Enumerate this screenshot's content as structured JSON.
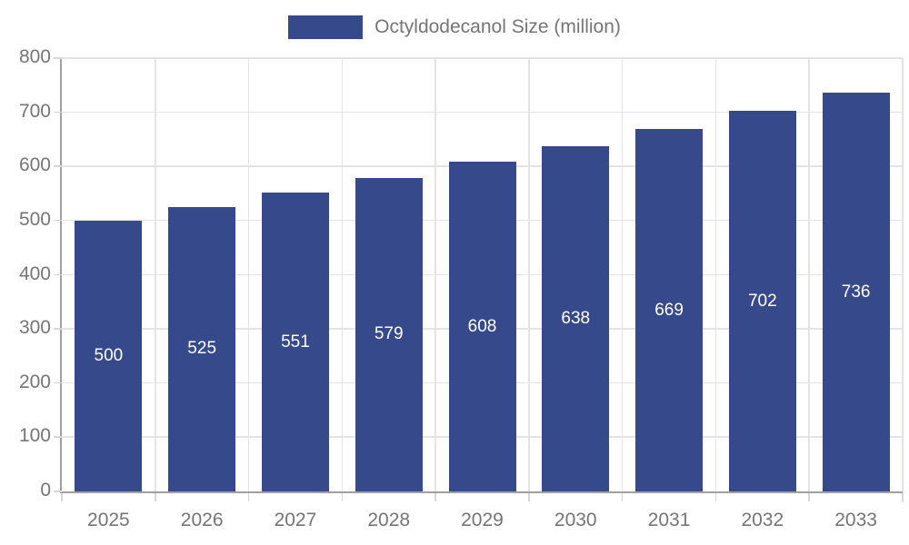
{
  "legend": {
    "label": "Octyldodecanol Size (million)"
  },
  "chart_data": {
    "type": "bar",
    "title": "",
    "xlabel": "",
    "ylabel": "",
    "series_name": "Octyldodecanol Size (million)",
    "categories": [
      "2025",
      "2026",
      "2027",
      "2028",
      "2029",
      "2030",
      "2031",
      "2032",
      "2033"
    ],
    "values": [
      500,
      525,
      551,
      579,
      608,
      638,
      669,
      702,
      736
    ],
    "value_labels_inside_bars": true,
    "ylim": [
      0,
      800
    ],
    "yticks": [
      0,
      100,
      200,
      300,
      400,
      500,
      600,
      700,
      800
    ],
    "grid": true,
    "legend_position": "top-center"
  },
  "colors": {
    "bar": "#36498A",
    "value_label_text": "#FFFFFF",
    "axis_text": "#757575",
    "legend_text": "#757575",
    "gridline": "#E4E4E4",
    "plot_border": "#E2E2E2",
    "axis_line": "#A0A0A0",
    "tick_mark": "#D6D6D6",
    "background": "#FFFFFF"
  }
}
